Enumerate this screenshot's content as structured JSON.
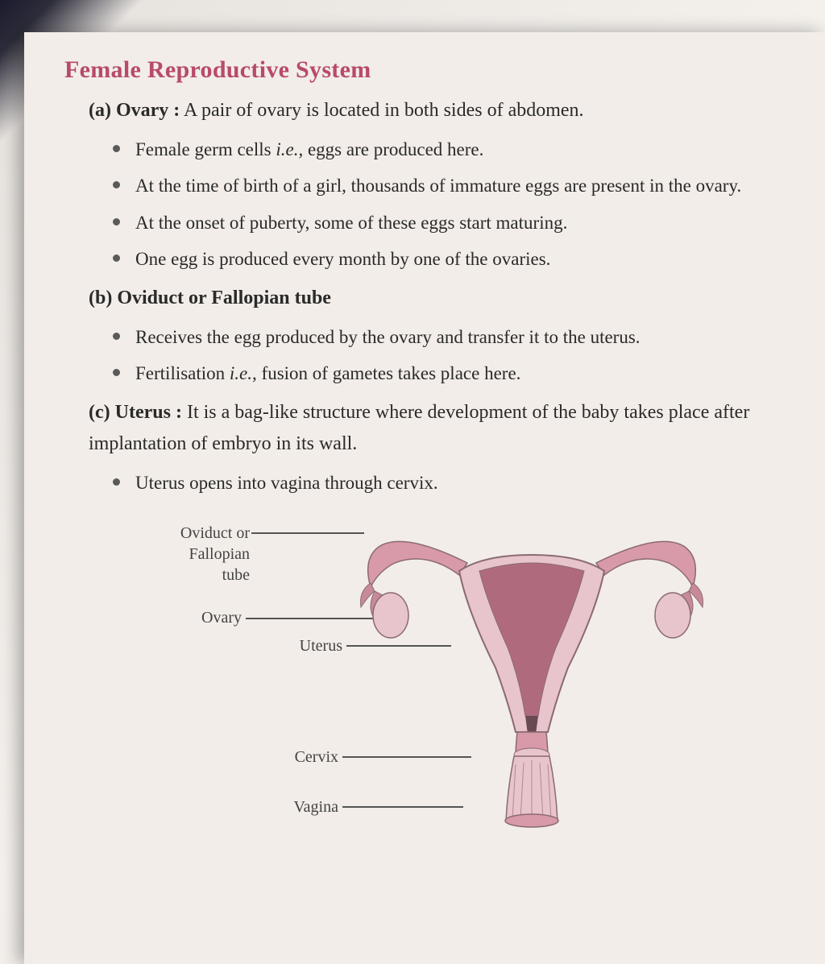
{
  "heading": {
    "text": "Female Reproductive System",
    "color": "#b84a6a"
  },
  "sections": {
    "a": {
      "label": "(a)",
      "title": "Ovary :",
      "desc": " A pair of ovary is located in both sides of abdomen.",
      "bullets": [
        "Female germ cells <span class=\"italic\">i.e.</span>, eggs are produced here.",
        "At the time of birth of a girl, thousands of immature eggs are present in the ovary.",
        "At the onset of puberty, some of these eggs start maturing.",
        "One egg is produced every month by one of the ovaries."
      ]
    },
    "b": {
      "label": "(b)",
      "title": "Oviduct or Fallopian tube",
      "desc": "",
      "bullets": [
        "Receives the egg produced by the ovary and transfer it to the uterus.",
        "Fertilisation <span class=\"italic\">i.e.</span>, fusion of gametes takes place here."
      ]
    },
    "c": {
      "label": "(c)",
      "title": "Uterus :",
      "desc": " It is a bag-like structure where development of the baby takes place after implantation of embryo in its wall.",
      "bullets": [
        "Uterus opens into vagina through cervix."
      ]
    }
  },
  "diagram": {
    "labels": {
      "oviduct": "Oviduct or\nFallopian\ntube",
      "ovary": "Ovary",
      "uterus": "Uterus",
      "cervix": "Cervix",
      "vagina": "Vagina"
    },
    "colors": {
      "outline": "#8a6a72",
      "fill_light": "#e8c4cc",
      "fill_mid": "#d89aa8",
      "fill_dark": "#b06a7e",
      "inner_dark": "#6a4a52",
      "fimbriae": "#c88a98"
    }
  }
}
